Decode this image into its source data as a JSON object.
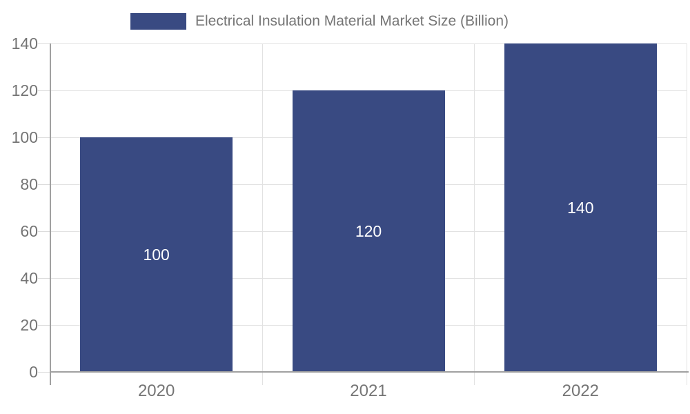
{
  "chart_data": {
    "type": "bar",
    "title": "",
    "categories": [
      "2020",
      "2021",
      "2022"
    ],
    "values": [
      100,
      120,
      140
    ],
    "bar_value_labels": [
      "100",
      "120",
      "140"
    ],
    "series_name": "Electrical Insulation Material Market Size (Billion)",
    "xlabel": "",
    "ylabel": "",
    "ylim": [
      0,
      140
    ],
    "ytick_step": 20,
    "ytick_labels": [
      "0",
      "20",
      "40",
      "60",
      "80",
      "100",
      "120",
      "140"
    ],
    "legend_position": "top-center",
    "grid": true,
    "colors": {
      "bar": "#394a82",
      "bar_label_text": "#ffffff",
      "axis_line": "#a0a0a0",
      "gridline": "#e2e2e2",
      "tick": "#dcdcdc",
      "axis_label_text": "#757575",
      "legend_text": "#757575",
      "background": "#ffffff"
    }
  }
}
